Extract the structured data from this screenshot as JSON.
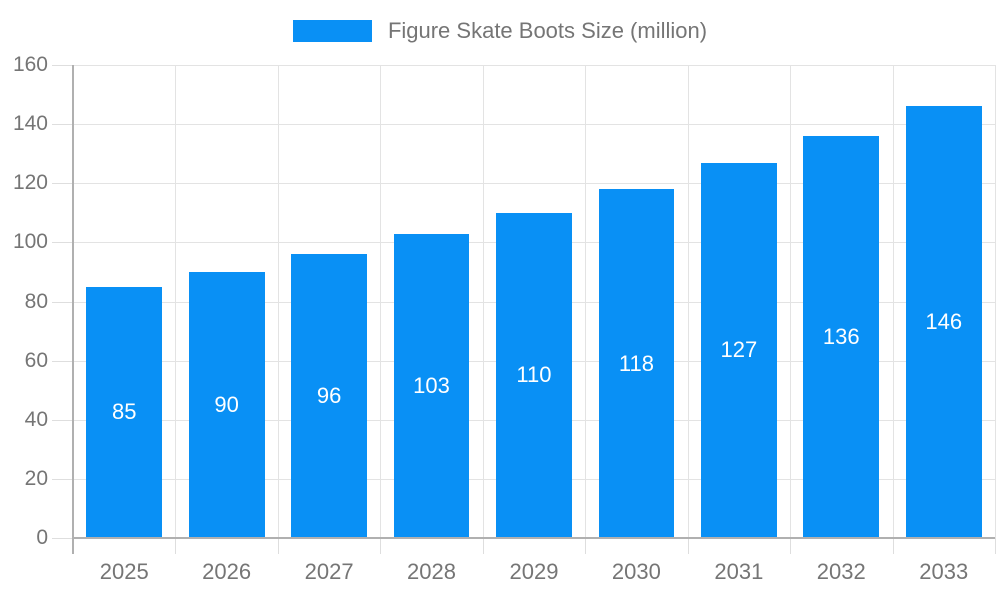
{
  "chart_data": {
    "type": "bar",
    "title": "Figure Skate Boots Size (million)",
    "categories": [
      "2025",
      "2026",
      "2027",
      "2028",
      "2029",
      "2030",
      "2031",
      "2032",
      "2033"
    ],
    "values": [
      85,
      90,
      96,
      103,
      110,
      118,
      127,
      136,
      146
    ],
    "xlabel": "",
    "ylabel": "",
    "ylim": [
      0,
      160
    ],
    "ytick_step": 20,
    "yticks": [
      0,
      20,
      40,
      60,
      80,
      100,
      120,
      140,
      160
    ],
    "grid": true,
    "value_labels": "centered-inside-bars",
    "legend": {
      "position": "top-center",
      "label": "Figure Skate Boots Size (million)"
    },
    "colors": {
      "bar": "#0990f5",
      "value_label": "#ffffff",
      "axis_text": "#757575",
      "axis_line": "#b0b0b0",
      "gridline": "#e3e3e3"
    }
  }
}
